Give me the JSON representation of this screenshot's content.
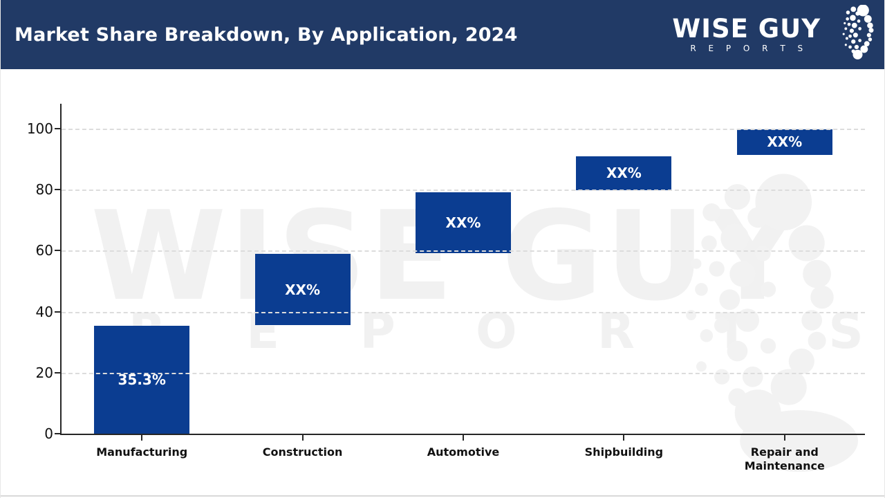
{
  "header": {
    "title": "Market Share Breakdown, By Application, 2024",
    "background_color": "#213a66",
    "logo": {
      "line1": "WISE GUY",
      "line2": "R E P O R T S"
    }
  },
  "watermark": {
    "line1": "WISE GUY",
    "line2": "R E P O R T S"
  },
  "chart_data": {
    "type": "bar",
    "variant": "waterfall",
    "title": "Market Share Breakdown, By Application, 2024",
    "categories": [
      "Manufacturing",
      "Construction",
      "Automotive",
      "Shipbuilding",
      "Repair and Maintenance"
    ],
    "segments": [
      {
        "category": "Manufacturing",
        "start": 0,
        "end": 35.3,
        "value_label": "35.3%"
      },
      {
        "category": "Construction",
        "start": 35.5,
        "end": 58.9,
        "value_label": "XX%"
      },
      {
        "category": "Automotive",
        "start": 59.1,
        "end": 79.2,
        "value_label": "XX%"
      },
      {
        "category": "Shipbuilding",
        "start": 79.8,
        "end": 91.0,
        "value_label": "XX%"
      },
      {
        "category": "Repair and Maintenance",
        "start": 91.4,
        "end": 99.8,
        "value_label": "XX%"
      }
    ],
    "xlabel": "",
    "ylabel": "",
    "ylim": [
      0,
      100
    ],
    "yticks": [
      0,
      20,
      40,
      60,
      80,
      100
    ],
    "grid": "dashed-horizontal-over-bars",
    "legend": "none",
    "bar_color": "#0b3d91"
  }
}
